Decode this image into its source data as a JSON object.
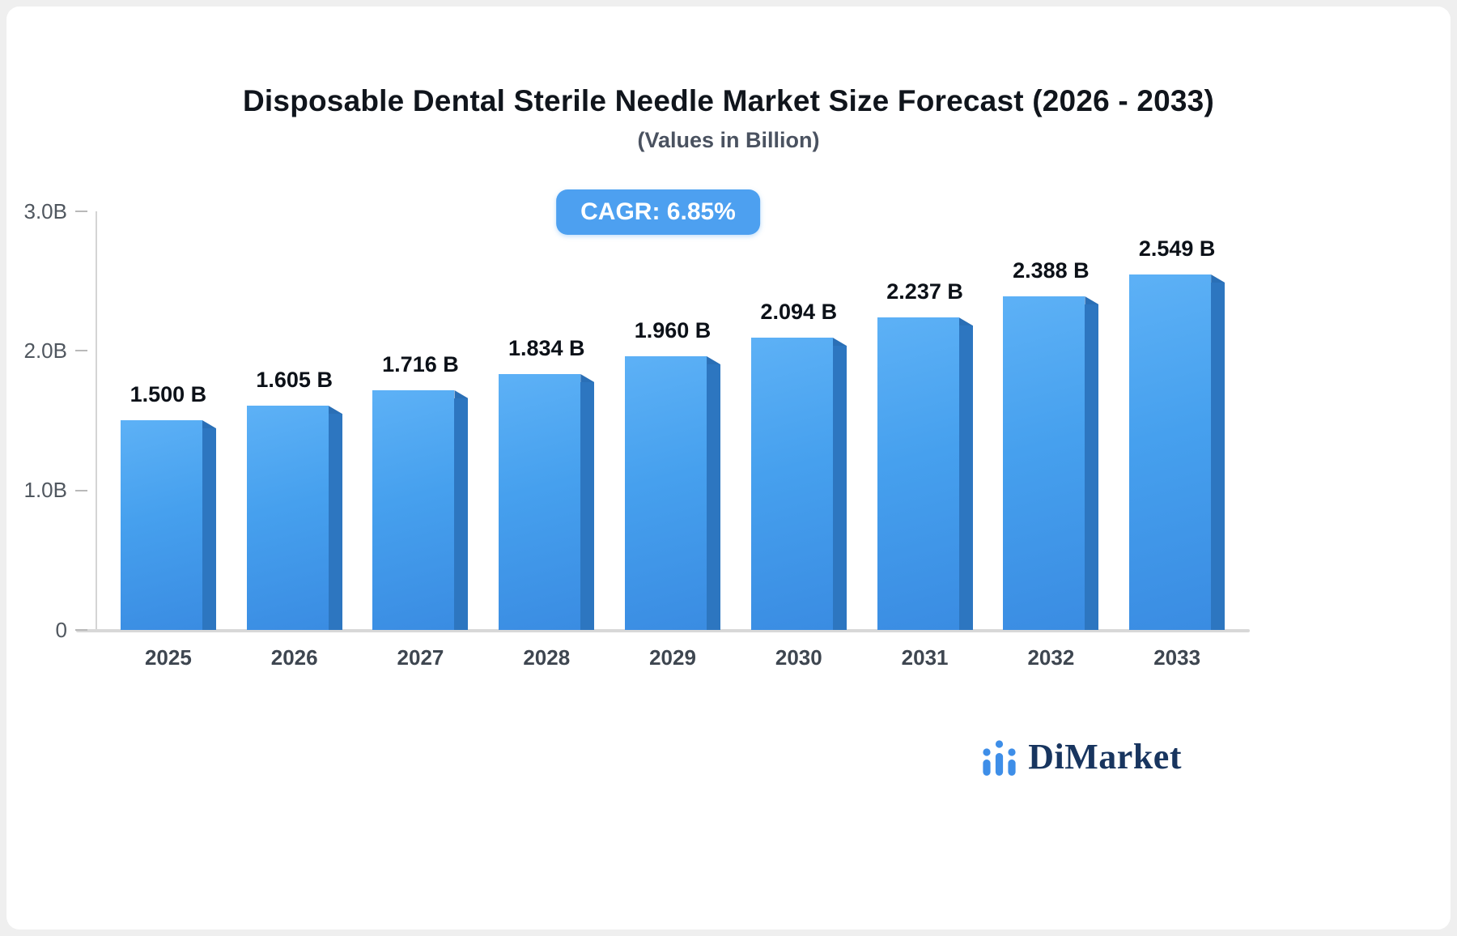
{
  "header": {
    "title": "Disposable Dental Sterile Needle Market Size Forecast (2026 - 2033)",
    "subtitle": "(Values in Billion)"
  },
  "badge": {
    "label": "CAGR: 6.85%",
    "color": "#4da0f0"
  },
  "chart_data": {
    "type": "bar",
    "title": "Disposable Dental Sterile Needle Market Size Forecast (2026 - 2033)",
    "subtitle": "(Values in Billion)",
    "categories": [
      "2025",
      "2026",
      "2027",
      "2028",
      "2029",
      "2030",
      "2031",
      "2032",
      "2033"
    ],
    "values": [
      1.5,
      1.605,
      1.716,
      1.834,
      1.96,
      2.094,
      2.237,
      2.388,
      2.549
    ],
    "value_labels": [
      "1.500 B",
      "1.605 B",
      "1.716 B",
      "1.834 B",
      "1.960 B",
      "2.094 B",
      "2.237 B",
      "2.388 B",
      "2.549 B"
    ],
    "xlabel": "",
    "ylabel": "",
    "ylim": [
      0,
      3.0
    ],
    "yticks": [
      {
        "label": "3.0B",
        "value": 3.0
      },
      {
        "label": "2.0B",
        "value": 2.0
      },
      {
        "label": "1.0B",
        "value": 1.0
      },
      {
        "label": "0",
        "value": 0
      }
    ],
    "grid": false,
    "legend": false,
    "bar_color": "#46a0ee",
    "bar_side_color": "#2d76c0"
  },
  "footer": {
    "brand": "DiMarket",
    "brand_color": "#18355f",
    "icon_color": "#3e8ee8"
  }
}
